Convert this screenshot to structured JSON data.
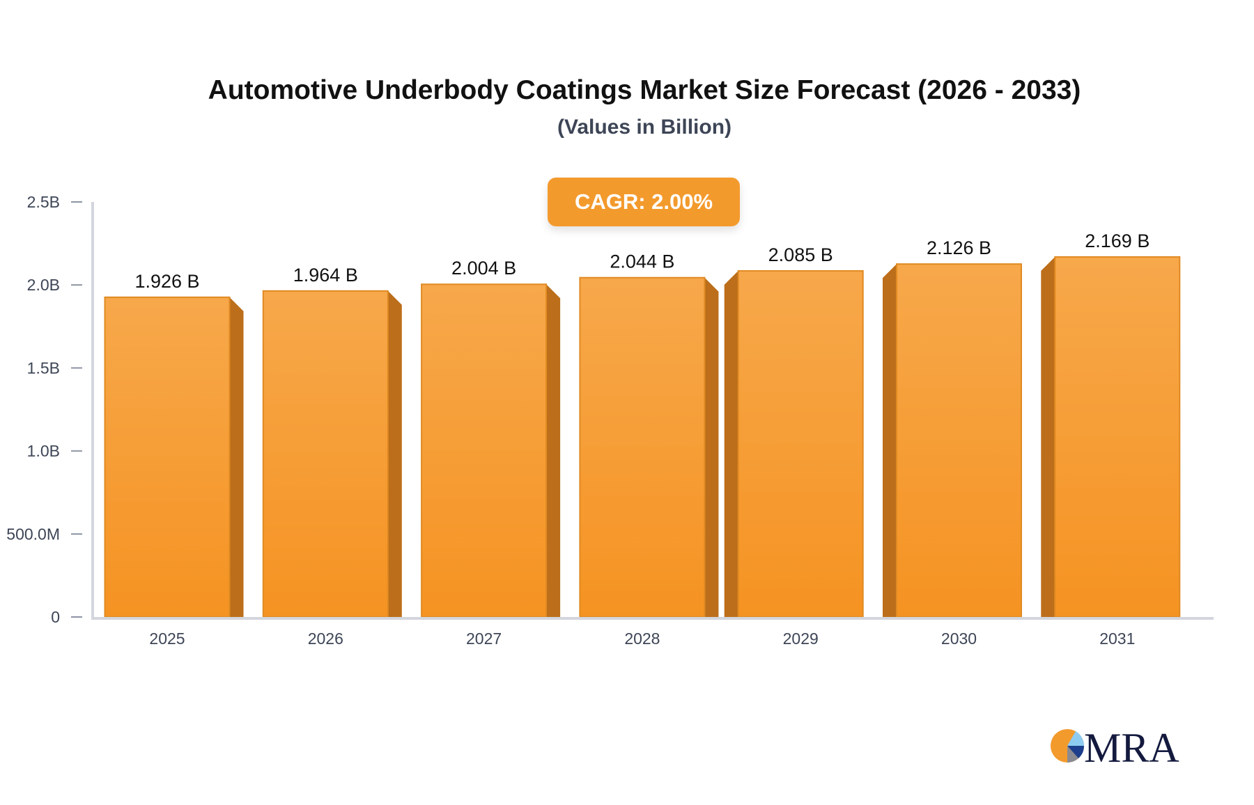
{
  "chart_data": {
    "type": "bar",
    "title": "Automotive Underbody Coatings Market Size Forecast (2026 - 2033)",
    "subtitle": "(Values in Billion)",
    "annotation": "CAGR: 2.00%",
    "categories": [
      "2025",
      "2026",
      "2027",
      "2028",
      "2029",
      "2030",
      "2031"
    ],
    "values": [
      1.926,
      1.964,
      2.004,
      2.044,
      2.085,
      2.126,
      2.169
    ],
    "data_labels": [
      "1.926 B",
      "1.964 B",
      "2.004 B",
      "2.044 B",
      "2.085 B",
      "2.126 B",
      "2.169 B"
    ],
    "y_ticks": [
      0,
      0.5,
      1.0,
      1.5,
      2.0,
      2.5
    ],
    "y_tick_labels": [
      "0",
      "500.0M",
      "1.0B",
      "1.5B",
      "2.0B",
      "2.5B"
    ],
    "ylim": [
      0,
      2.5
    ],
    "unit": "Billion",
    "grid": false,
    "colors": {
      "bar_top": "#f7a84b",
      "bar_bottom": "#f59322",
      "bar_side": "#bc6e1a",
      "badge": "#f39a2d"
    }
  },
  "logo": {
    "text": "MRA"
  }
}
